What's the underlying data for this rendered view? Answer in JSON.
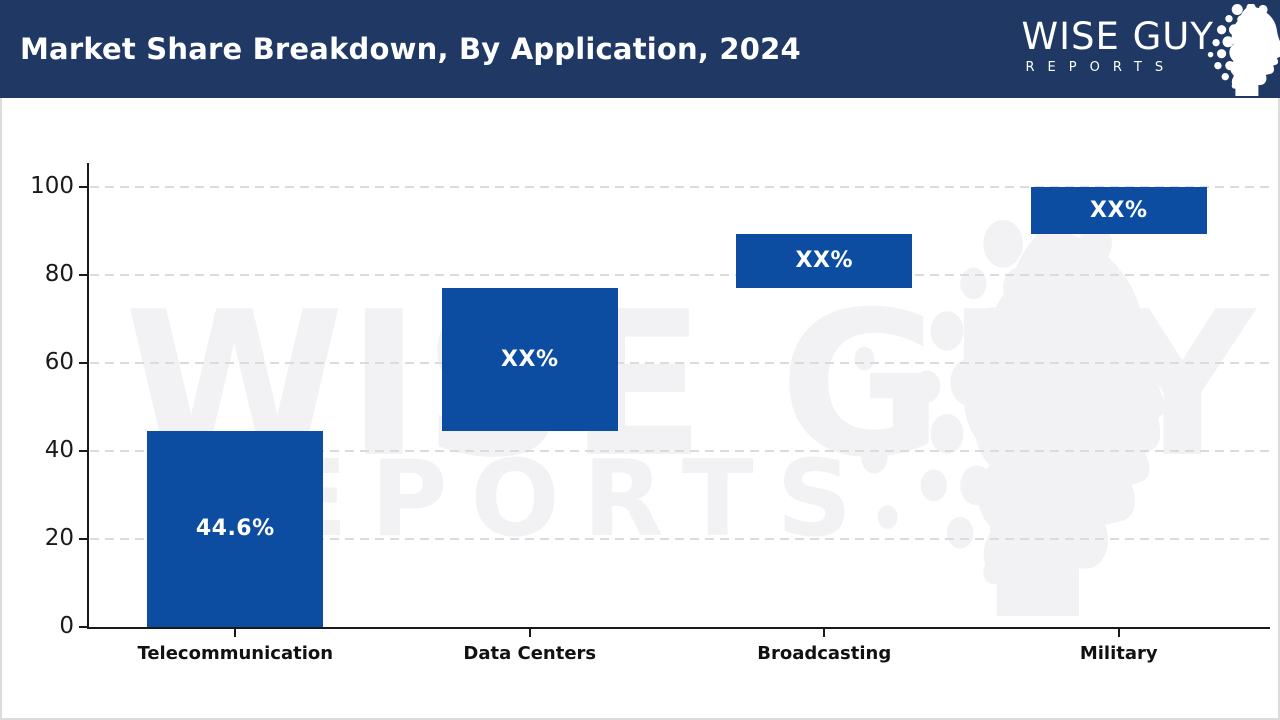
{
  "header": {
    "title": "Market Share Breakdown, By Application, 2024",
    "logo": {
      "line1": "WISE GUY",
      "line2": "REPORTS"
    }
  },
  "watermark": {
    "line1": "WISE GUY",
    "line2": "REPORTS"
  },
  "chart_data": {
    "type": "bar",
    "subtype": "waterfall",
    "title": "Market Share Breakdown, By Application, 2024",
    "categories": [
      "Telecommunication",
      "Data Centers",
      "Broadcasting",
      "Military"
    ],
    "segments": [
      {
        "category": "Telecommunication",
        "label": "44.6%",
        "start": 0,
        "end": 44.6
      },
      {
        "category": "Data Centers",
        "label": "XX%",
        "start": 44.6,
        "end": 77.0
      },
      {
        "category": "Broadcasting",
        "label": "XX%",
        "start": 77.0,
        "end": 89.4
      },
      {
        "category": "Military",
        "label": "XX%",
        "start": 89.4,
        "end": 100.0
      }
    ],
    "ylim": [
      0,
      100
    ],
    "yticks": [
      0,
      20,
      40,
      60,
      80,
      100
    ],
    "grid": "horizontal-dashed",
    "legend": "none",
    "colors": {
      "bar": "#0C4DA2",
      "bar_label": "#FFFFFF",
      "grid": "#DBDBDB",
      "axis": "#1A1A1A",
      "header_bg": "#1F3864",
      "watermark": "#F2F2F4"
    }
  }
}
